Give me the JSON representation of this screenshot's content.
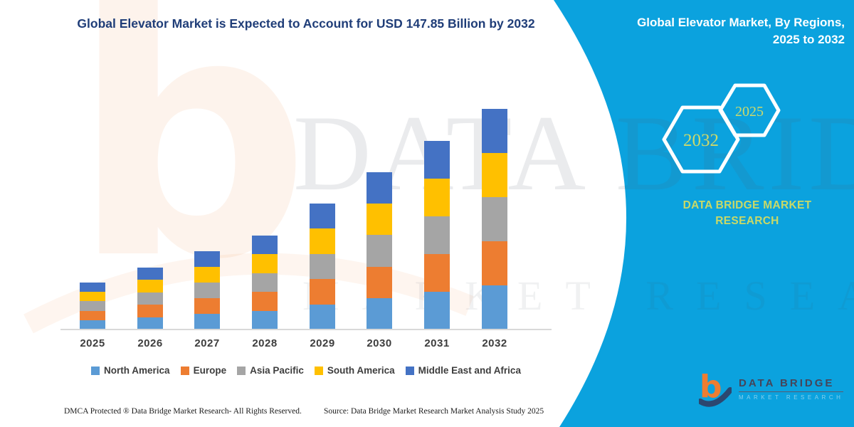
{
  "chart": {
    "title": "Global Elevator Market is Expected to Account for USD 147.85 Billion by 2032"
  },
  "chart_data": {
    "type": "bar",
    "stacked": true,
    "title": "Global Elevator Market is Expected to Account for USD 147.85 Billion by 2032",
    "unit": "USD Billion",
    "xlabel": "",
    "ylabel": "",
    "ylim": [
      0,
      160
    ],
    "grid": false,
    "legend_position": "bottom",
    "categories": [
      "2025",
      "2026",
      "2027",
      "2028",
      "2029",
      "2030",
      "2031",
      "2032"
    ],
    "totals": [
      31.5,
      41.5,
      52.5,
      63.0,
      84.5,
      105.5,
      126.5,
      147.85
    ],
    "series": [
      {
        "name": "North America",
        "color": "#5B9BD5",
        "values": [
          6.3,
          8.3,
          10.5,
          12.6,
          16.9,
          21.1,
          25.3,
          29.57
        ]
      },
      {
        "name": "Europe",
        "color": "#ED7D31",
        "values": [
          6.3,
          8.3,
          10.5,
          12.6,
          16.9,
          21.1,
          25.3,
          29.57
        ]
      },
      {
        "name": "Asia Pacific",
        "color": "#A5A5A5",
        "values": [
          6.3,
          8.3,
          10.5,
          12.6,
          16.9,
          21.1,
          25.3,
          29.57
        ]
      },
      {
        "name": "South America",
        "color": "#FFC000",
        "values": [
          6.3,
          8.3,
          10.5,
          12.6,
          16.9,
          21.1,
          25.3,
          29.57
        ]
      },
      {
        "name": "Middle East and Africa",
        "color": "#4472C4",
        "values": [
          6.3,
          8.3,
          10.5,
          12.6,
          16.9,
          21.1,
          25.3,
          29.57
        ]
      }
    ],
    "annotation": "USD 147.85 Billion by 2032"
  },
  "sidebar": {
    "title": "Global Elevator Market, By Regions, 2025 to 2032",
    "hexagons": [
      "2032",
      "2025"
    ],
    "brand": "DATA BRIDGE MARKET RESEARCH",
    "accent_color": "#0ba2de",
    "hex_text_color": "#cdd96b"
  },
  "logo": {
    "name": "DATA BRIDGE",
    "tagline": "MARKET RESEARCH"
  },
  "watermarks": {
    "big_text": "DATA BRIDGE",
    "sub_text": "MARKET RESEARCH",
    "logo_letter": "b"
  },
  "footer": {
    "dmca": "DMCA Protected ® Data Bridge Market Research-  All Rights Reserved.",
    "source": "Source: Data Bridge Market Research  Market Analysis Study 2025"
  }
}
